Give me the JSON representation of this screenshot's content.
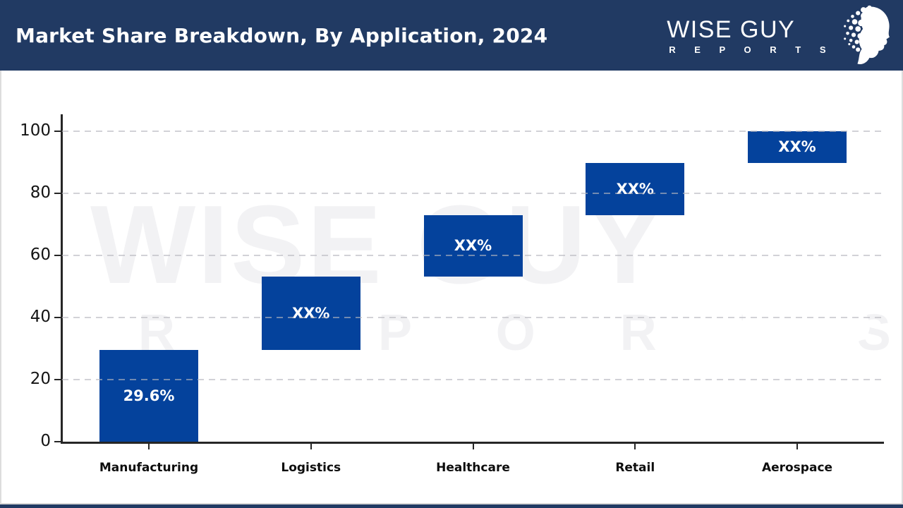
{
  "header": {
    "title": "Market Share Breakdown, By Application, 2024",
    "bg_color": "#213A63",
    "logo": {
      "line1": "WISE GUY",
      "line2": "R E P O R T S"
    }
  },
  "watermark": {
    "line1": "WISE GUY",
    "line2": "R E P O R T S",
    "color": "#f2f2f4"
  },
  "chart_data": {
    "type": "bar",
    "subtype": "waterfall",
    "title": "Market Share Breakdown, By Application, 2024",
    "categories": [
      "Manufacturing",
      "Logistics",
      "Healthcare",
      "Retail",
      "Aerospace"
    ],
    "segments": [
      {
        "category": "Manufacturing",
        "start": 0,
        "end": 29.6,
        "label": "29.6%"
      },
      {
        "category": "Logistics",
        "start": 29.6,
        "end": 53.2,
        "label": "XX%"
      },
      {
        "category": "Healthcare",
        "start": 53.3,
        "end": 73.0,
        "label": "XX%"
      },
      {
        "category": "Retail",
        "start": 73.0,
        "end": 89.8,
        "label": "XX%"
      },
      {
        "category": "Aerospace",
        "start": 89.9,
        "end": 100,
        "label": "XX%"
      }
    ],
    "yticks": [
      0,
      20,
      40,
      60,
      80,
      100
    ],
    "ylim": [
      0,
      105.5
    ],
    "xlabel": "",
    "ylabel": "",
    "grid": true,
    "legend": false,
    "bar_color": "#04429C",
    "grid_color": "#c9c9cf",
    "axis_color": "#262626"
  }
}
